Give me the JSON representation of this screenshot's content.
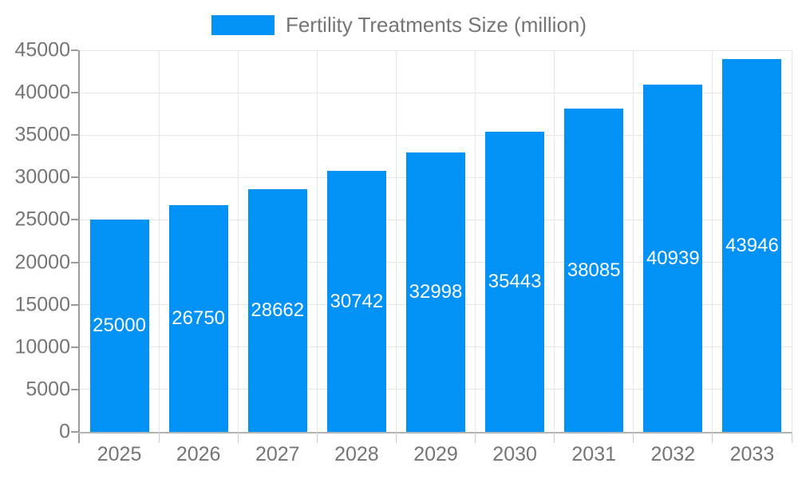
{
  "legend": {
    "label": "Fertility Treatments Size (million)"
  },
  "chart_data": {
    "type": "bar",
    "title": "Fertility Treatments Size (million)",
    "categories": [
      "2025",
      "2026",
      "2027",
      "2028",
      "2029",
      "2030",
      "2031",
      "2032",
      "2033"
    ],
    "values": [
      25000,
      26750,
      28662,
      30742,
      32998,
      35443,
      38085,
      40939,
      43946
    ],
    "series_name": "Fertility Treatments Size (million)",
    "xlabel": "",
    "ylabel": "",
    "ylim": [
      0,
      45000
    ],
    "yticks": [
      0,
      5000,
      10000,
      15000,
      20000,
      25000,
      30000,
      35000,
      40000,
      45000
    ],
    "grid": true,
    "legend_position": "top-center",
    "bar_labels_inside": true,
    "colors": {
      "bar": "#0291f5",
      "bar_value_text": "#ffffff",
      "axis_text": "#757575",
      "legend_text": "#757575",
      "gridline": "#e6e6e6",
      "y_axis_line": "#9b9b9b",
      "x_axis_line": "#b3b3b3",
      "minor_tick": "#cccccc"
    }
  }
}
